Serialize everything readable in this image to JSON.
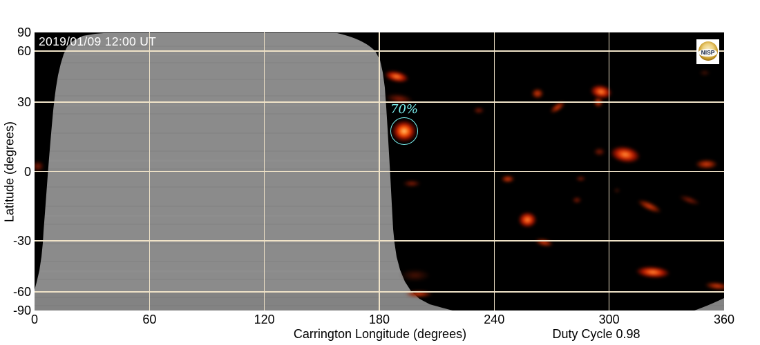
{
  "chart_data": {
    "type": "heatmap",
    "timestamp": "2019/01/09 12:00 UT",
    "xlabel": "Carrington Longitude (degrees)",
    "ylabel": "Latitude (degrees)",
    "duty_cycle_label": "Duty Cycle 0.98",
    "logo_text": "NISP",
    "x_ticks": [
      0,
      60,
      120,
      180,
      240,
      300,
      360
    ],
    "y_ticks": [
      90,
      60,
      30,
      0,
      -30,
      -60,
      -90
    ],
    "xlim": [
      0,
      360
    ],
    "ylim": [
      -90,
      90
    ],
    "y_scale": "sine_latitude",
    "grid": true,
    "colors": {
      "grid": "#f0e3c8",
      "front_side_gray": "#8b8b8b",
      "far_side_black": "#000000",
      "annotation_cyan": "#7af0f0",
      "hot_spot_core": "#ff6a22"
    },
    "front_side": {
      "approx_lon_range": [
        0,
        186
      ]
    },
    "annotation": {
      "label": "70%",
      "lon": 193,
      "lat": 17
    },
    "active_regions": [
      {
        "lon": 189.0,
        "lat": 43.0,
        "intensity": "bright",
        "w": 36,
        "h": 16,
        "rot": 12
      },
      {
        "lon": 190.5,
        "lat": 31.5,
        "intensity": "faint",
        "w": 40,
        "h": 15,
        "rot": 8
      },
      {
        "lon": 193.0,
        "lat": 17.0,
        "intensity": "brightest",
        "w": 36,
        "h": 32,
        "rot": 0
      },
      {
        "lon": 197.0,
        "lat": -5.0,
        "intensity": "faint",
        "w": 26,
        "h": 10,
        "rot": 0
      },
      {
        "lon": 198.7,
        "lat": -48.5,
        "intensity": "veryfaint",
        "w": 44,
        "h": 18,
        "rot": 0
      },
      {
        "lon": 200.5,
        "lat": -61.5,
        "intensity": "medium",
        "w": 40,
        "h": 10,
        "rot": 0
      },
      {
        "lon": 232.0,
        "lat": 26.0,
        "intensity": "faint",
        "w": 16,
        "h": 10,
        "rot": 0
      },
      {
        "lon": 262.6,
        "lat": 34.0,
        "intensity": "medium",
        "w": 18,
        "h": 15,
        "rot": 0
      },
      {
        "lon": 273.0,
        "lat": 27.5,
        "intensity": "medium",
        "w": 26,
        "h": 11,
        "rot": -35
      },
      {
        "lon": 295.8,
        "lat": 35.0,
        "intensity": "bright",
        "w": 32,
        "h": 20,
        "rot": 10
      },
      {
        "lon": 294.4,
        "lat": 30.0,
        "intensity": "medium",
        "w": 14,
        "h": 16,
        "rot": 0
      },
      {
        "lon": 295.0,
        "lat": 8.0,
        "intensity": "faint",
        "w": 17,
        "h": 12,
        "rot": 0
      },
      {
        "lon": 308.5,
        "lat": 7.0,
        "intensity": "bright",
        "w": 44,
        "h": 24,
        "rot": 10
      },
      {
        "lon": 350.7,
        "lat": 3.0,
        "intensity": "medium",
        "w": 33,
        "h": 14,
        "rot": 0
      },
      {
        "lon": 247.1,
        "lat": -3.0,
        "intensity": "medium",
        "w": 20,
        "h": 11,
        "rot": 0
      },
      {
        "lon": 285.0,
        "lat": -3.0,
        "intensity": "faint",
        "w": 15,
        "h": 8,
        "rot": 0
      },
      {
        "lon": 257.2,
        "lat": -20.3,
        "intensity": "bright",
        "w": 27,
        "h": 23,
        "rot": 0
      },
      {
        "lon": 266.2,
        "lat": -30.7,
        "intensity": "medium",
        "w": 27,
        "h": 11,
        "rot": 12
      },
      {
        "lon": 283.2,
        "lat": -12.0,
        "intensity": "faint",
        "w": 14,
        "h": 10,
        "rot": 0
      },
      {
        "lon": 304.0,
        "lat": -7.8,
        "intensity": "veryfaint",
        "w": 10,
        "h": 8,
        "rot": 0
      },
      {
        "lon": 321.0,
        "lat": -14.6,
        "intensity": "medium",
        "w": 38,
        "h": 12,
        "rot": 25
      },
      {
        "lon": 342.0,
        "lat": -12.0,
        "intensity": "faint",
        "w": 32,
        "h": 10,
        "rot": 20
      },
      {
        "lon": 322.8,
        "lat": -46.5,
        "intensity": "bright",
        "w": 50,
        "h": 17,
        "rot": 4
      },
      {
        "lon": 356.4,
        "lat": -55.6,
        "intensity": "medium",
        "w": 36,
        "h": 11,
        "rot": 6
      },
      {
        "lon": 1.8,
        "lat": 2.0,
        "intensity": "faint",
        "w": 18,
        "h": 16,
        "rot": 0
      },
      {
        "lon": 350.0,
        "lat": 45.3,
        "intensity": "veryfaint",
        "w": 16,
        "h": 9,
        "rot": 0
      }
    ]
  }
}
